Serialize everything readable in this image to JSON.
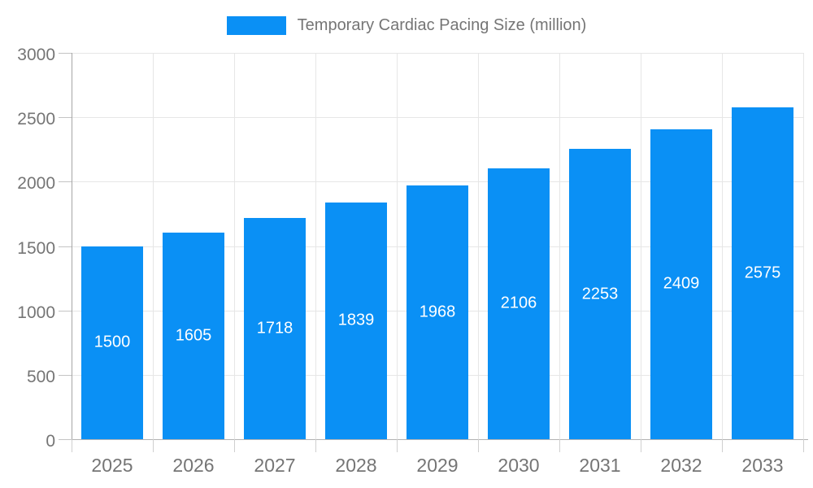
{
  "legend": {
    "label": "Temporary Cardiac Pacing Size (million)"
  },
  "chart_data": {
    "type": "bar",
    "title": "Temporary Cardiac Pacing Size (million)",
    "categories": [
      "2025",
      "2026",
      "2027",
      "2028",
      "2029",
      "2030",
      "2031",
      "2032",
      "2033"
    ],
    "values": [
      1500,
      1605,
      1718,
      1839,
      1968,
      2106,
      2253,
      2409,
      2575
    ],
    "bar_value_labels": [
      "1500",
      "1605",
      "1718",
      "1839",
      "1968",
      "2106",
      "2253",
      "2409",
      "2575"
    ],
    "xlabel": "",
    "ylabel": "",
    "ylim": [
      0,
      3000
    ],
    "yticks": [
      0,
      500,
      1000,
      1500,
      2000,
      2500,
      3000
    ],
    "grid": true,
    "legend_position": "top-center",
    "colors": {
      "bar": "#0a90f5",
      "bar_label": "#ffffff",
      "axis_text": "#757575",
      "gridline": "#e6e6e6"
    }
  }
}
